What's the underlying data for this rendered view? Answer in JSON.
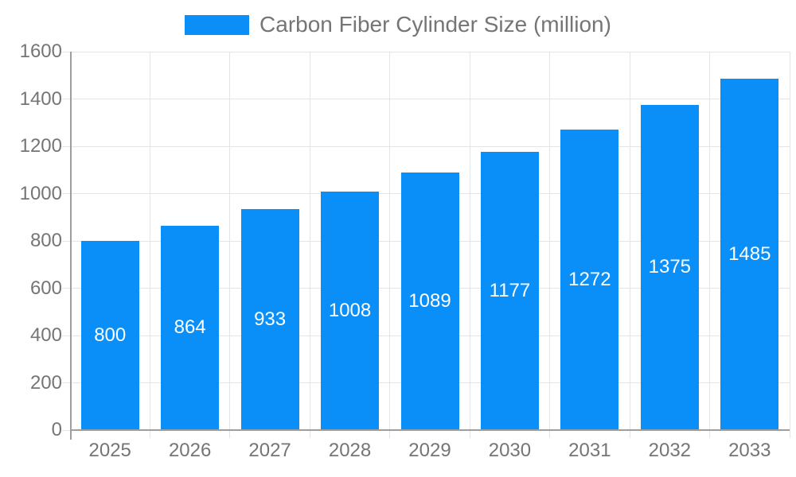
{
  "chart_data": {
    "type": "bar",
    "title": "",
    "xlabel": "",
    "ylabel": "",
    "series_name": "Carbon Fiber Cylinder Size (million)",
    "categories": [
      "2025",
      "2026",
      "2027",
      "2028",
      "2029",
      "2030",
      "2031",
      "2032",
      "2033"
    ],
    "values": [
      800,
      864,
      933,
      1008,
      1089,
      1177,
      1272,
      1375,
      1485
    ],
    "value_labels": [
      "800",
      "864",
      "933",
      "1008",
      "1089",
      "1177",
      "1272",
      "1375",
      "1485"
    ],
    "ylim": [
      0,
      1600
    ],
    "yticks": [
      0,
      200,
      400,
      600,
      800,
      1000,
      1200,
      1400,
      1600
    ],
    "ytick_labels": [
      "0",
      "200",
      "400",
      "600",
      "800",
      "1000",
      "1200",
      "1400",
      "1600"
    ],
    "grid": true,
    "legend_position": "top-center",
    "colors": {
      "bar": "#0a8ff8",
      "value_label": "#ffffff",
      "axis_text": "#757575",
      "legend_text": "#757575",
      "gridline": "#e4e4e8",
      "axis_line": "#9e9e9e"
    }
  }
}
